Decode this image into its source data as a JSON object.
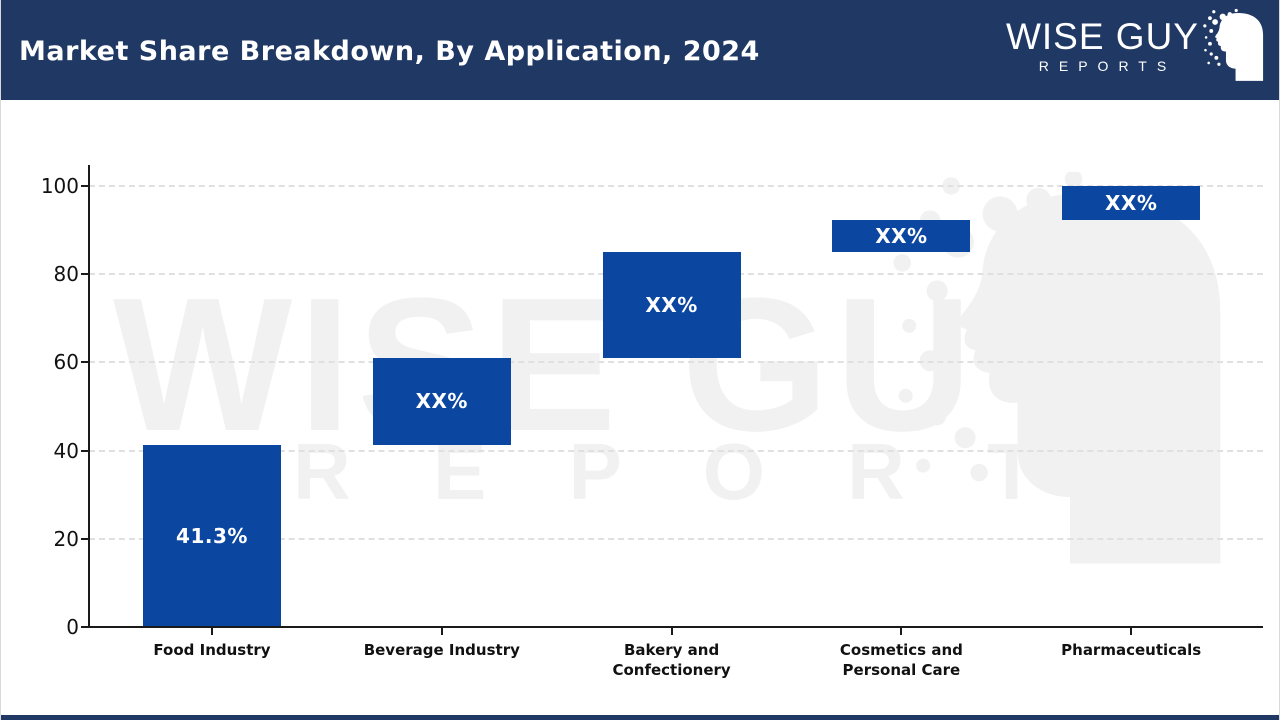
{
  "header": {
    "title": "Market Share Breakdown, By Application, 2024",
    "logo_line1": "WISE GUY",
    "logo_line2": "REPORTS"
  },
  "watermark": {
    "line1": "WISE GUY",
    "line2": "R E P O R T S"
  },
  "colors": {
    "header_bg": "#1f3864",
    "bar": "#0b46a1",
    "grid": "#e0e0e0",
    "axis": "#1a1a1a",
    "watermark": "#f1f1f1",
    "bar_label_text": "#ffffff"
  },
  "chart_data": {
    "type": "bar",
    "subtype": "waterfall",
    "title": "Market Share Breakdown, By Application, 2024",
    "xlabel": "",
    "ylabel": "",
    "ylim": [
      0,
      105
    ],
    "yticks": [
      0,
      20,
      40,
      60,
      80,
      100
    ],
    "grid": "horizontal-dashed",
    "legend": false,
    "categories": [
      "Food Industry",
      "Beverage Industry",
      "Bakery and\nConfectionery",
      "Cosmetics and\nPersonal Care",
      "Pharmaceuticals"
    ],
    "bars": [
      {
        "category": "Food Industry",
        "start": 0,
        "end": 41.3,
        "label": "41.3%"
      },
      {
        "category": "Beverage Industry",
        "start": 41.3,
        "end": 61.0,
        "label": "XX%"
      },
      {
        "category": "Bakery and Confectionery",
        "start": 61.0,
        "end": 85.0,
        "label": "XX%"
      },
      {
        "category": "Cosmetics and Personal Care",
        "start": 85.0,
        "end": 92.4,
        "label": "XX%"
      },
      {
        "category": "Pharmaceuticals",
        "start": 92.4,
        "end": 100.0,
        "label": "XX%"
      }
    ]
  }
}
